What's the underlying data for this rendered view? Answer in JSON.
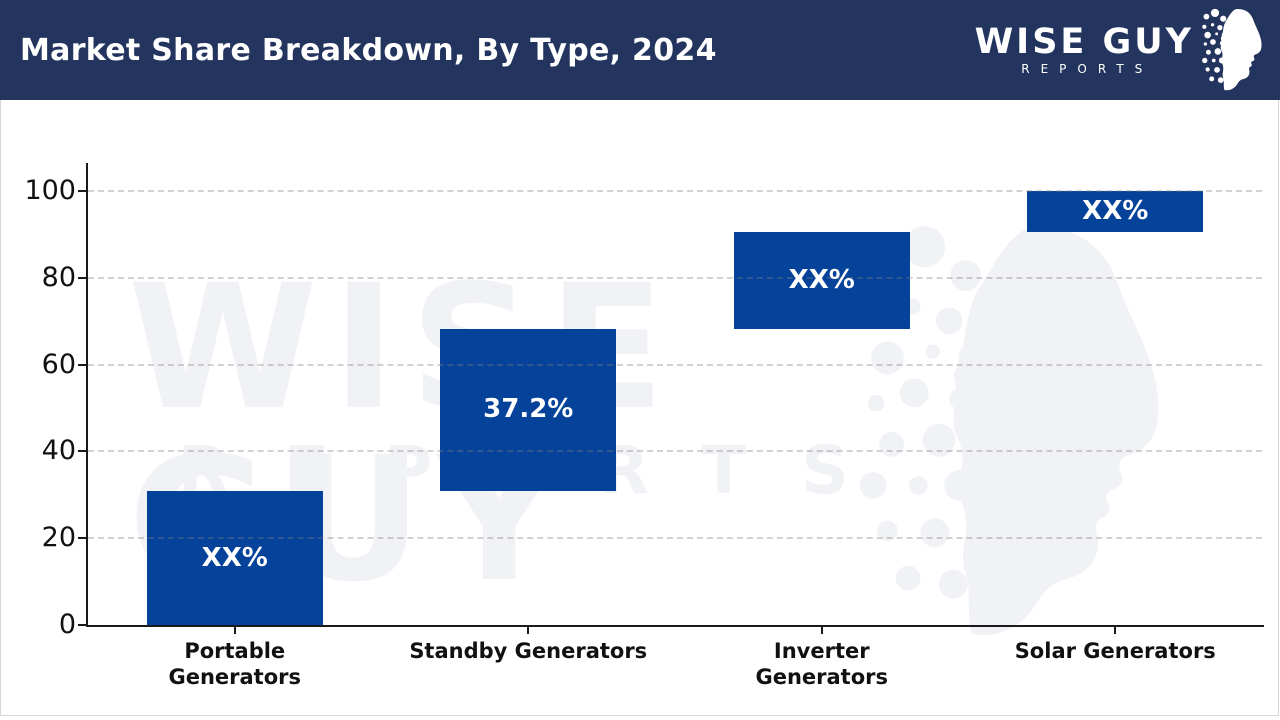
{
  "page": {
    "background": "#ffffff",
    "frame_color": "#d5d7da"
  },
  "header": {
    "background": "#23355e",
    "title": "Market Share Breakdown, By Type, 2024",
    "logo": {
      "line1": "WISE GUY",
      "line2": "REPORTS"
    }
  },
  "watermark": {
    "line1": "WISE GUY",
    "line2": "REPORTS"
  },
  "chart_data": {
    "type": "bar",
    "subtype": "waterfall-stacked-share",
    "title": "Market Share Breakdown, By Type, 2024",
    "categories": [
      "Portable\nGenerators",
      "Standby Generators",
      "Inverter\nGenerators",
      "Solar Generators"
    ],
    "series": [
      {
        "name": "Portable Generators",
        "start": 0,
        "end": 31,
        "label": "XX%"
      },
      {
        "name": "Standby Generators",
        "start": 31,
        "end": 68.2,
        "label": "37.2%"
      },
      {
        "name": "Inverter Generators",
        "start": 68.2,
        "end": 90.6,
        "label": "XX%"
      },
      {
        "name": "Solar Generators",
        "start": 90.6,
        "end": 100,
        "label": "XX%"
      }
    ],
    "revealed_value_pct": 37.2,
    "yticks": [
      0,
      20,
      40,
      60,
      80,
      100
    ],
    "ylim": [
      0,
      106.5
    ],
    "xlabel": "",
    "ylabel": "",
    "bar_color": "#05429a",
    "bar_label_color": "#ffffff",
    "axis_color": "#1a1a1a",
    "gridline_style": "dashed",
    "gridline_color": "rgba(125,125,125,0.35)",
    "legend": "none"
  }
}
